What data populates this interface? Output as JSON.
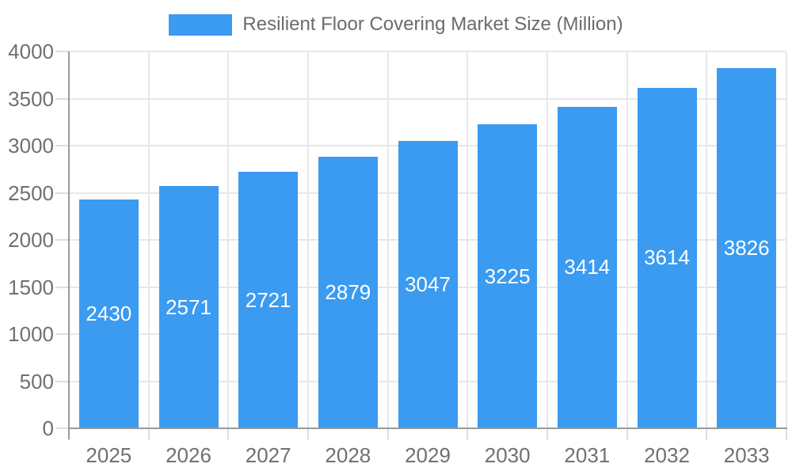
{
  "chart_data": {
    "type": "bar",
    "title": "Resilient Floor Covering Market Size (Million)",
    "categories": [
      "2025",
      "2026",
      "2027",
      "2028",
      "2029",
      "2030",
      "2031",
      "2032",
      "2033"
    ],
    "values": [
      2430,
      2571,
      2721,
      2879,
      3047,
      3225,
      3414,
      3614,
      3826
    ],
    "series": [
      {
        "name": "Resilient Floor Covering Market Size (Million)",
        "values": [
          2430,
          2571,
          2721,
          2879,
          3047,
          3225,
          3414,
          3614,
          3826
        ]
      }
    ],
    "xlabel": "",
    "ylabel": "",
    "ylim": [
      0,
      4000
    ],
    "ytick_step": 500,
    "yticks": [
      0,
      500,
      1000,
      1500,
      2000,
      2500,
      3000,
      3500,
      4000
    ],
    "grid": "on",
    "legend_position": "top-center",
    "bar_label_position": "inside-center"
  },
  "colors": {
    "bar_fill": "#3b9bf0",
    "bar_label_text": "#ffffff",
    "axis_line": "#9a9a9a",
    "grid_line": "#e7e7e7",
    "tick_line": "#dedede",
    "axis_label_text": "#707070",
    "legend_text": "#6b6b6b",
    "background": "#ffffff"
  }
}
